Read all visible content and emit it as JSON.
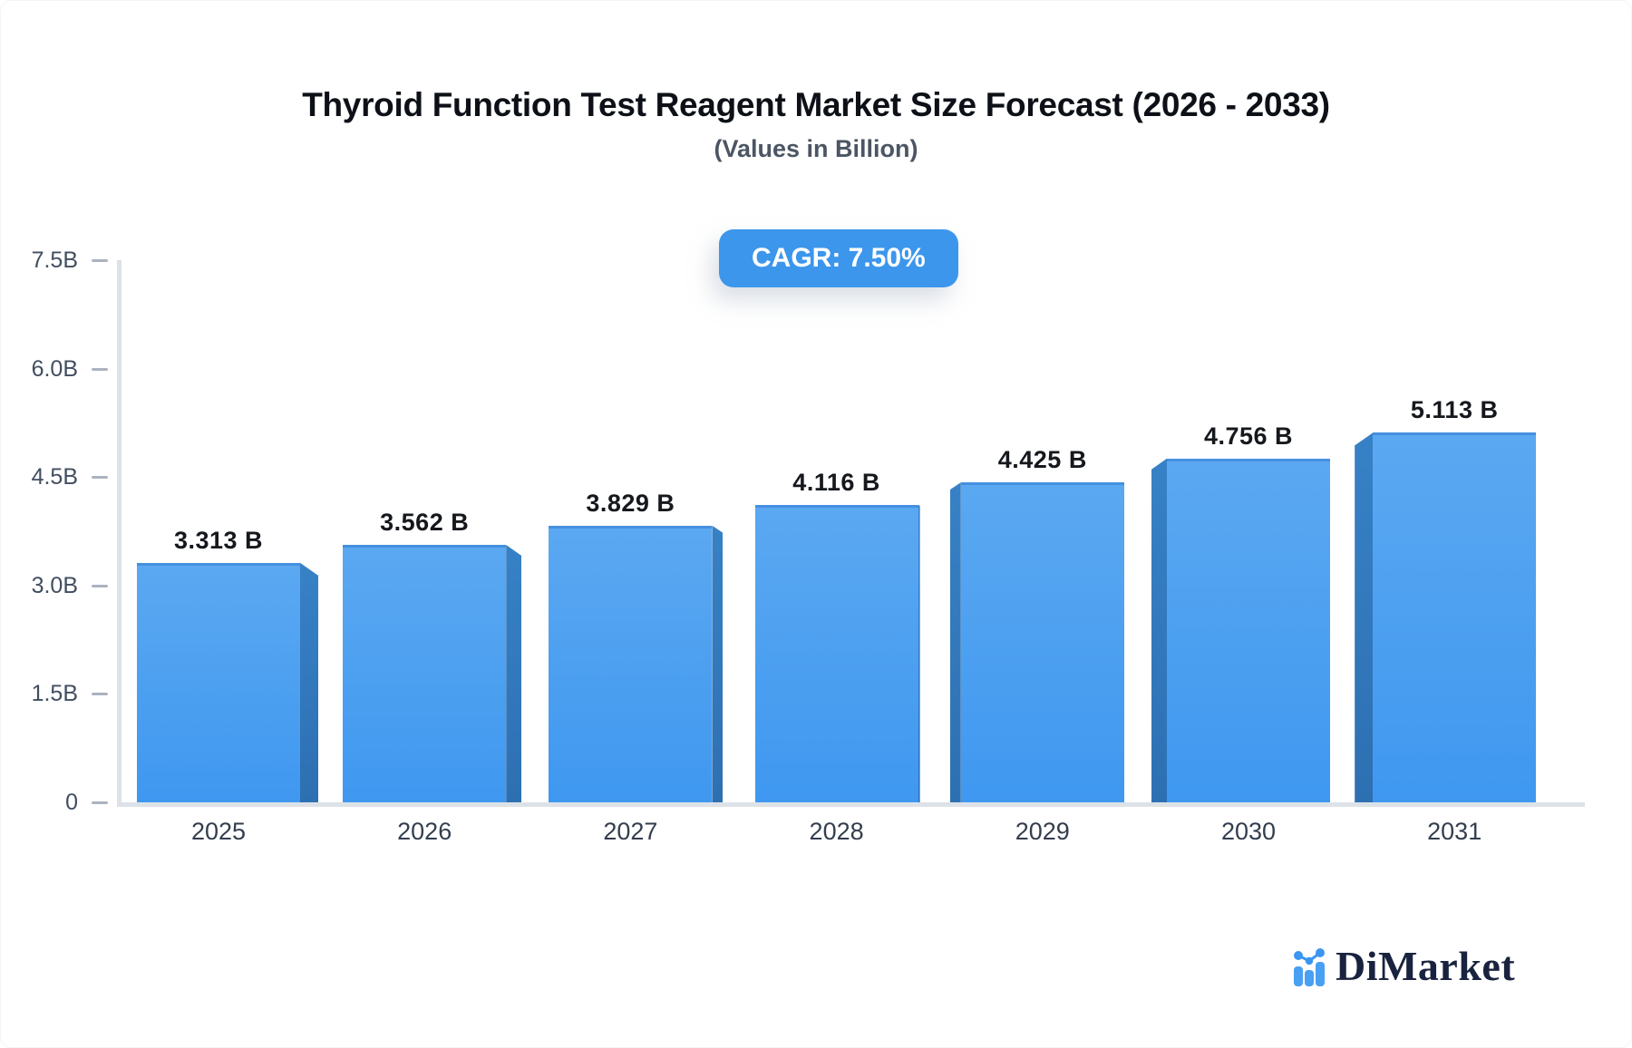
{
  "header": {
    "title": "Thyroid Function Test Reagent Market Size Forecast (2026 - 2033)",
    "subtitle": "(Values in Billion)",
    "cagr_badge": "CAGR: 7.50%"
  },
  "footer": {
    "brand": "DiMarket",
    "logo_icon": "bar-chart-logo-icon"
  },
  "colors": {
    "badge_blue": "#3c96ec",
    "bar_face_top": "#5ba8f1",
    "bar_face_bottom": "#3f98f0",
    "bar_top_edge": "#4590e0",
    "bar_side_top": "#3781c6",
    "bar_side_bottom": "#2d70b2",
    "axis_gray": "#dde2e8",
    "tick_gray": "#aab3bf",
    "logo_navy": "#19233f",
    "logo_blue": "#3b96f0"
  },
  "chart_data": {
    "type": "bar",
    "title": "Thyroid Function Test Reagent Market Size Forecast (2026 - 2033)",
    "subtitle": "(Values in Billion)",
    "xlabel": "",
    "ylabel": "",
    "ylim": [
      0,
      7.5
    ],
    "grid": false,
    "legend": false,
    "categories": [
      "2025",
      "2026",
      "2027",
      "2028",
      "2029",
      "2030",
      "2031"
    ],
    "values": [
      3.313,
      3.562,
      3.829,
      4.116,
      4.425,
      4.756,
      5.113
    ],
    "value_labels": [
      "3.313 B",
      "3.562 B",
      "3.829 B",
      "4.116 B",
      "4.425 B",
      "4.756 B",
      "5.113 B"
    ],
    "yticks": [
      {
        "label": "0",
        "value": 0
      },
      {
        "label": "1.5B",
        "value": 1.5
      },
      {
        "label": "3.0B",
        "value": 3.0
      },
      {
        "label": "4.5B",
        "value": 4.5
      },
      {
        "label": "6.0B",
        "value": 6.0
      },
      {
        "label": "7.5B",
        "value": 7.5
      }
    ]
  }
}
